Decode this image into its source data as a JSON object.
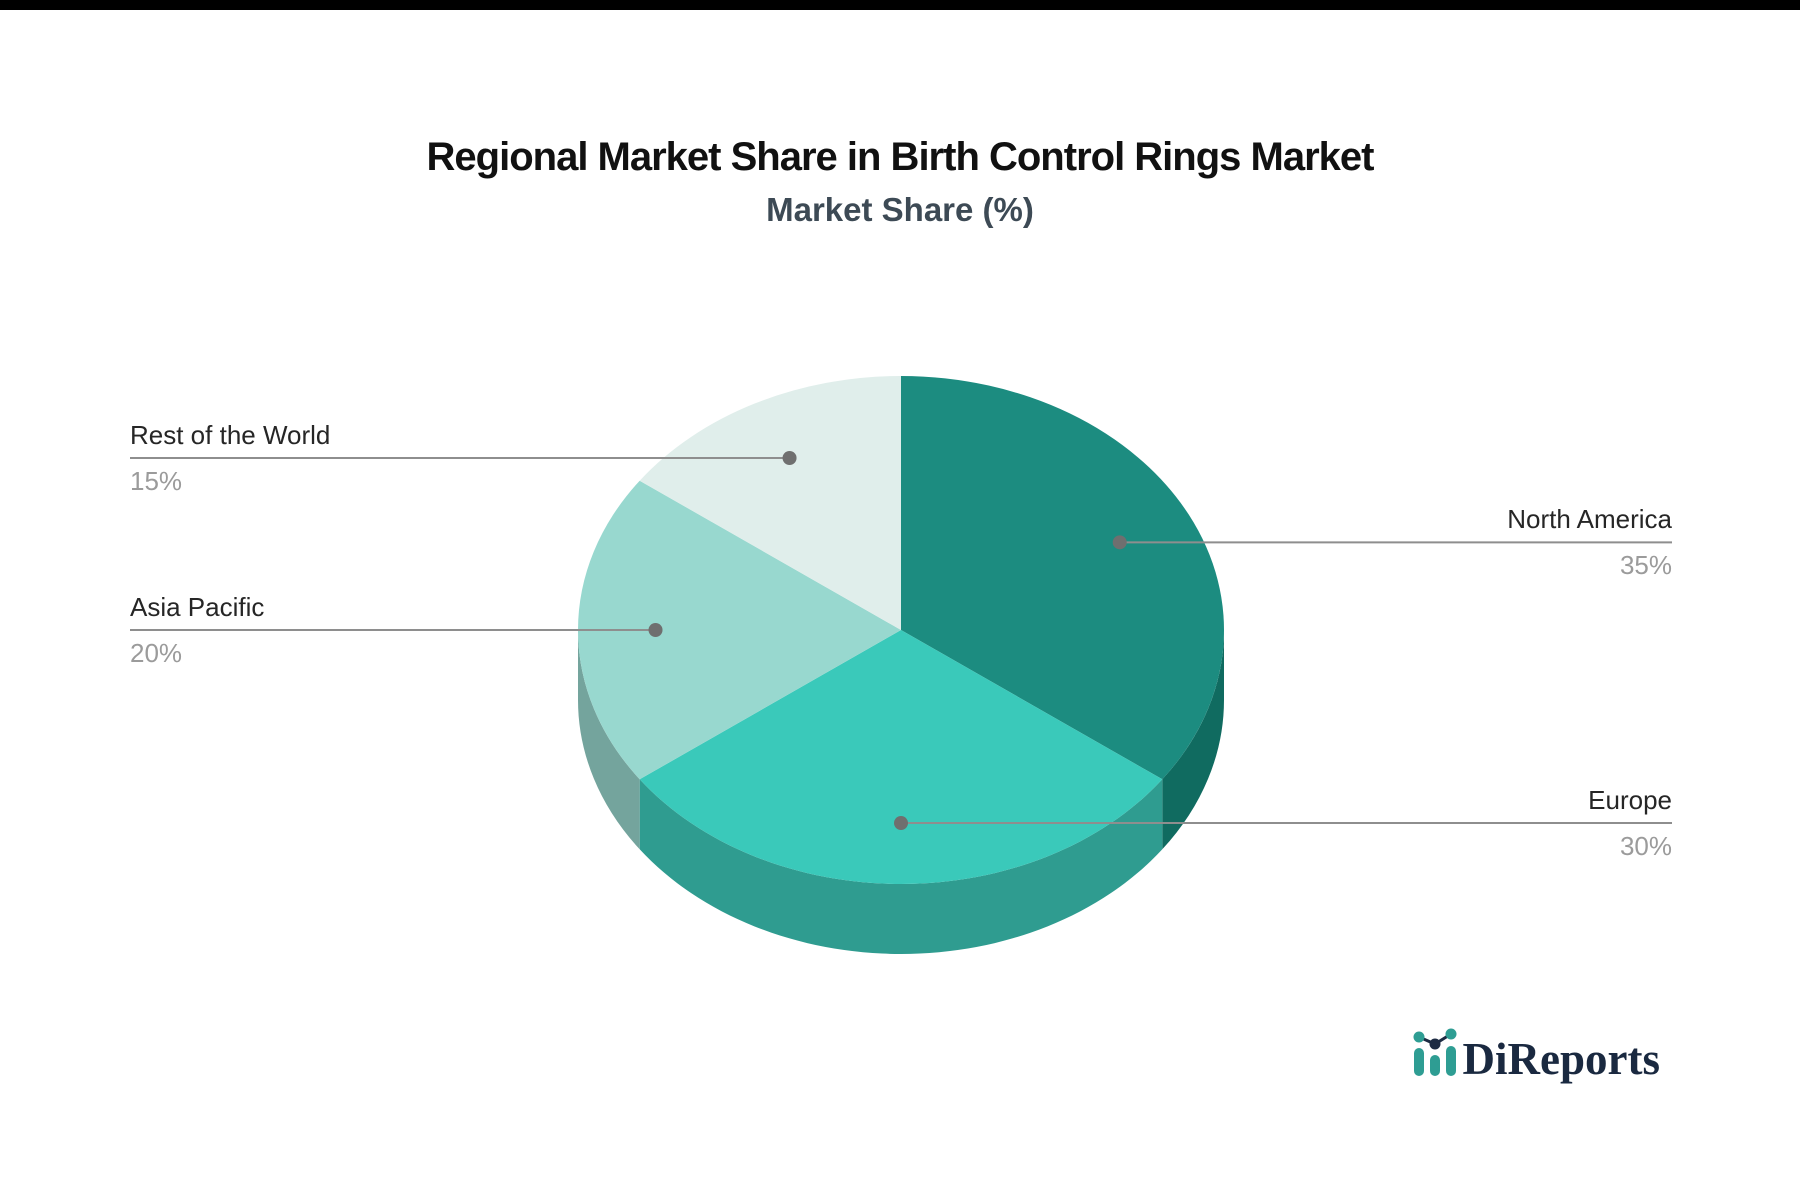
{
  "window": {
    "top_edge_color": "#000000",
    "background": "#ffffff"
  },
  "header": {
    "title": "Regional Market Share in Birth Control Rings Market",
    "subtitle": "Market Share (%)",
    "title_color": "#111111",
    "subtitle_color": "#3d4a55"
  },
  "chart_data": {
    "type": "pie",
    "title": "Regional Market Share in Birth Control Rings Market",
    "subtitle": "Market Share (%)",
    "unit": "percent",
    "effect": "3d",
    "start_angle_deg": 0,
    "direction": "clockwise",
    "legend_position": "none",
    "categories": [
      "North America",
      "Europe",
      "Asia Pacific",
      "Rest of the World"
    ],
    "values": [
      35,
      30,
      20,
      15
    ],
    "percent_labels": [
      "35%",
      "30%",
      "20%",
      "15%"
    ],
    "label_sides": [
      "right",
      "right",
      "left",
      "left"
    ],
    "colors": {
      "top": [
        "#1c8c80",
        "#3ac9ba",
        "#98d8cf",
        "#e0eeeb"
      ],
      "side": [
        "#106b60",
        "#2f9c90",
        "#74a49d",
        "#c9dfdb"
      ],
      "leader_line": "#8e8e8e",
      "leader_dot": "#6f6f6f",
      "category_text": "#262626",
      "percent_text": "#9b9b9b"
    }
  },
  "logo": {
    "text": "DiReports",
    "icon": "bar-line-chart-icon",
    "text_color": "#1a2940",
    "accent_color": "#2e9d93",
    "dot_color": "#1d2b43"
  }
}
